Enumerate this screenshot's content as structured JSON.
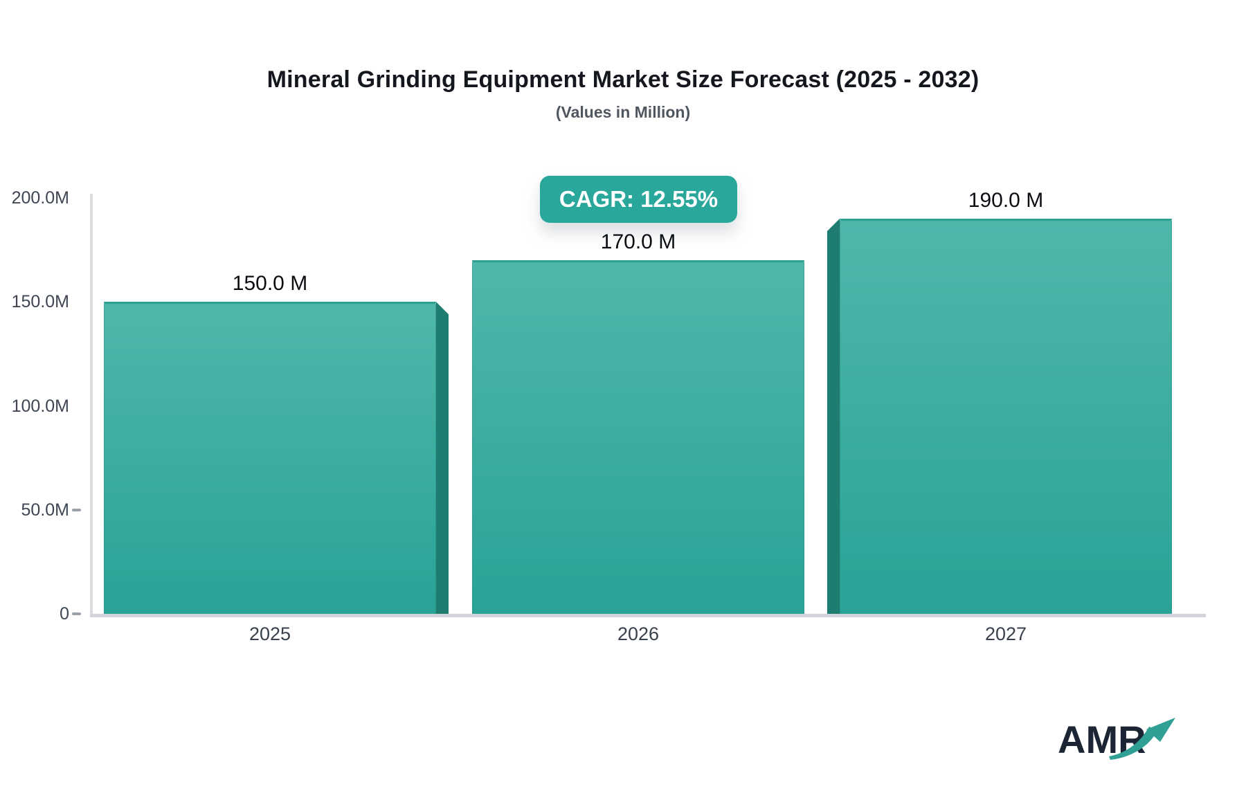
{
  "title": "Mineral Grinding Equipment Market Size Forecast (2025 - 2032)",
  "subtitle": "(Values in Million)",
  "badge": {
    "label": "CAGR: 12.55%"
  },
  "watermark": {
    "text": "AMR",
    "arrow_icon": "growth-arrow-icon"
  },
  "colors": {
    "accent_teal": "#2aa79b",
    "bar_gradient_top": "#4fb7aa",
    "bar_gradient_bottom": "#28a396",
    "bar_side_face": "#1f7c70",
    "bar_top_edge": "#2f9f92",
    "axis_line": "#d2d5da",
    "tick_dash": "#9aa1a9",
    "title_text": "#14171d",
    "subtitle_text": "#4f565f",
    "axis_text": "#3f4653",
    "value_label_text": "#0a0d12",
    "logo_text": "#1c2533"
  },
  "chart_data": {
    "type": "bar",
    "title": "Mineral Grinding Equipment Market Size Forecast (2025 - 2032)",
    "subtitle": "(Values in Million)",
    "unit": "Million (M)",
    "categories": [
      "2025",
      "2026",
      "2027"
    ],
    "values": [
      150.0,
      170.0,
      190.0
    ],
    "value_labels": [
      "150.0 M",
      "170.0 M",
      "190.0 M"
    ],
    "cagr_percent": 12.55,
    "cagr_label": "CAGR: 12.55%",
    "ylim": [
      0,
      200
    ],
    "yticks": [
      {
        "value": 200,
        "label": "200.0M",
        "dash": false
      },
      {
        "value": 150,
        "label": "150.0M",
        "dash": false
      },
      {
        "value": 100,
        "label": "100.0M",
        "dash": false
      },
      {
        "value": 50,
        "label": "50.0M",
        "dash": true
      },
      {
        "value": 0,
        "label": "0",
        "dash": true
      }
    ],
    "grid": false,
    "legend": false,
    "bar_style": "pseudo-3d"
  }
}
